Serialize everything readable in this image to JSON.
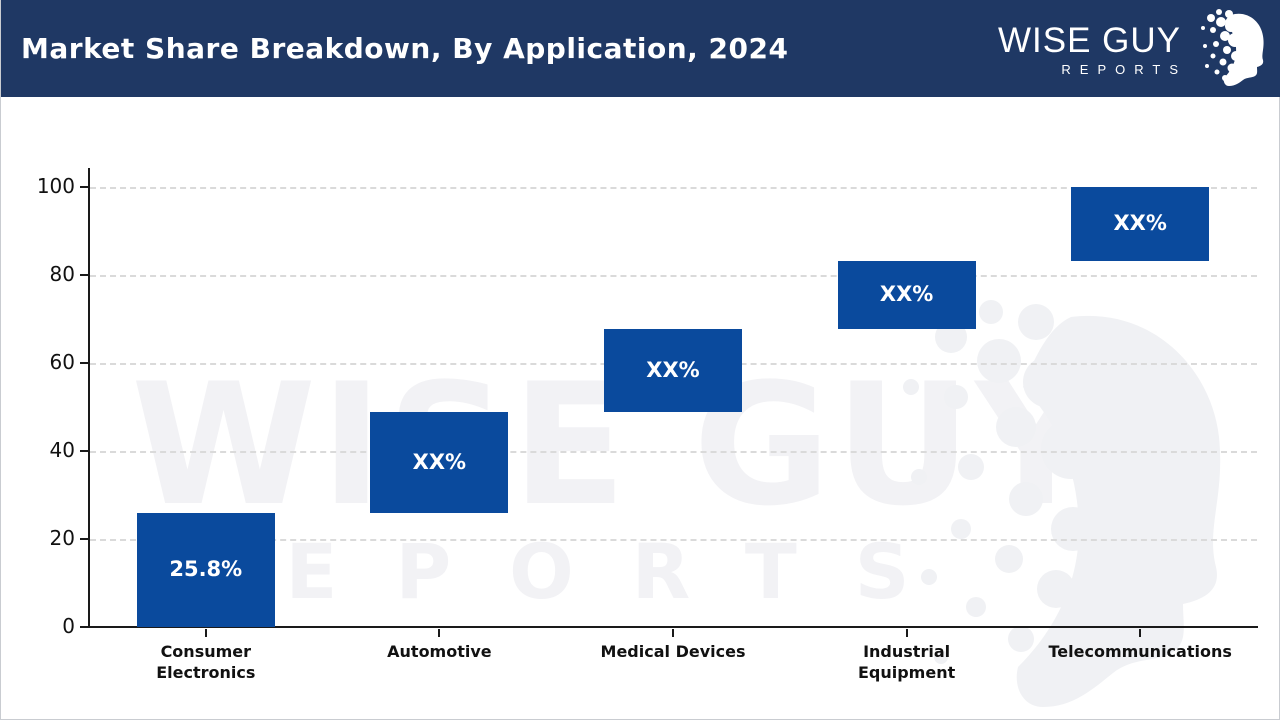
{
  "header": {
    "title": "Market Share Breakdown, By Application, 2024"
  },
  "logo": {
    "wordmark": "WISE GUY",
    "subtext": "REPORTS"
  },
  "watermark": {
    "line1": "WISE GUY",
    "line2": "REPORTS"
  },
  "colors": {
    "header_bg": "#1f3864",
    "bar": "#0a4a9d",
    "grid": "#dadada",
    "axis": "#1a1a1a",
    "bar_label_text": "#ffffff",
    "watermark": "#f2f2f5"
  },
  "chart_data": {
    "type": "bar",
    "subtype": "waterfall",
    "title": "Market Share Breakdown, By Application, 2024",
    "categories": [
      "Consumer Electronics",
      "Automotive",
      "Medical Devices",
      "Industrial Equipment",
      "Telecommunications"
    ],
    "categories_display": [
      "Consumer\nElectronics",
      "Automotive",
      "Medical Devices",
      "Industrial\nEquipment",
      "Telecommunications"
    ],
    "segments": [
      {
        "category": "Consumer Electronics",
        "start": 0,
        "end": 25.8,
        "label": "25.8%"
      },
      {
        "category": "Automotive",
        "start": 25.8,
        "end": 48.8,
        "label": "XX%"
      },
      {
        "category": "Medical Devices",
        "start": 48.8,
        "end": 67.7,
        "label": "XX%"
      },
      {
        "category": "Industrial Equipment",
        "start": 67.7,
        "end": 83.1,
        "label": "XX%"
      },
      {
        "category": "Telecommunications",
        "start": 83.1,
        "end": 100,
        "label": "XX%"
      }
    ],
    "ylim": [
      0,
      100
    ],
    "yticks": [
      0,
      20,
      40,
      60,
      80,
      100
    ],
    "xlabel": "",
    "ylabel": "",
    "grid": "horizontal-dashed",
    "legend": "none"
  }
}
